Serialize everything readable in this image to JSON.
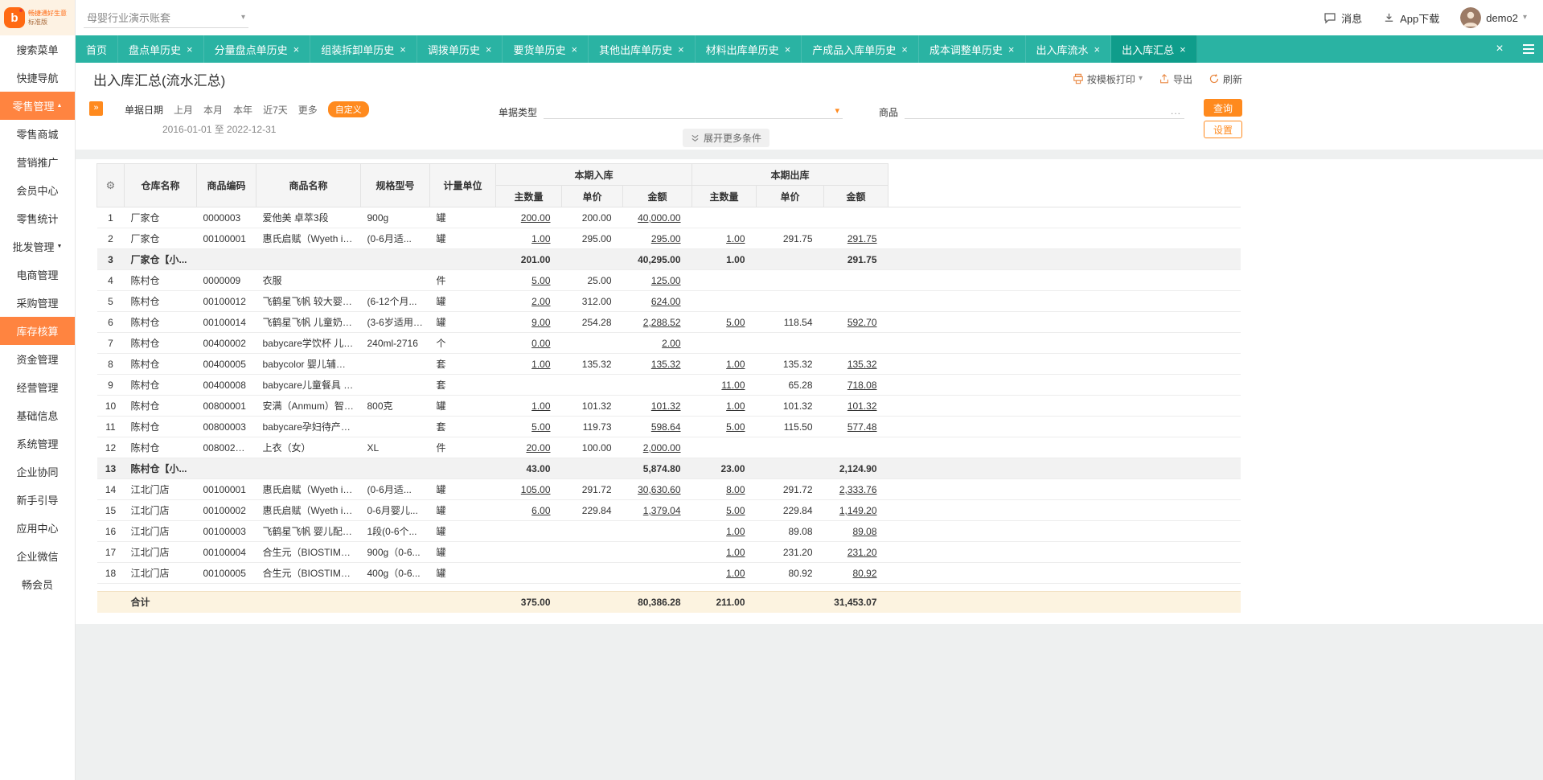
{
  "theme": {
    "teal": "#2ab3a3",
    "teal_dark": "#0f9d8b",
    "orange": "#ff8a1e",
    "orange_deep": "#ff8440",
    "cream": "#fcf3e0"
  },
  "icons": {
    "close": "×",
    "collapse": "»",
    "ellipsis": "...",
    "caret_down": "▾",
    "gear": "⚙",
    "menu_up": "▲",
    "menu_down": "▼"
  },
  "topbar": {
    "logo_title": "畅捷通好生意",
    "logo_sub": "标准版",
    "account": "母婴行业演示账套",
    "message": "消息",
    "app_download": "App下载",
    "user": "demo2"
  },
  "tabbar": {
    "tabs": [
      {
        "label": "首页",
        "closable": false,
        "active": false
      },
      {
        "label": "盘点单历史",
        "closable": true,
        "active": false
      },
      {
        "label": "分量盘点单历史",
        "closable": true,
        "active": false
      },
      {
        "label": "组装拆卸单历史",
        "closable": true,
        "active": false
      },
      {
        "label": "调拨单历史",
        "closable": true,
        "active": false
      },
      {
        "label": "要货单历史",
        "closable": true,
        "active": false
      },
      {
        "label": "其他出库单历史",
        "closable": true,
        "active": false
      },
      {
        "label": "材料出库单历史",
        "closable": true,
        "active": false
      },
      {
        "label": "产成品入库单历史",
        "closable": true,
        "active": false
      },
      {
        "label": "成本调整单历史",
        "closable": true,
        "active": false
      },
      {
        "label": "出入库流水",
        "closable": true,
        "active": false
      },
      {
        "label": "出入库汇总",
        "closable": true,
        "active": true
      }
    ]
  },
  "sidebar": {
    "items": [
      {
        "label": "搜索菜单"
      },
      {
        "label": "快捷导航"
      },
      {
        "label": "零售管理",
        "arrow": "up",
        "highlight": true
      },
      {
        "label": "零售商城"
      },
      {
        "label": "营销推广"
      },
      {
        "label": "会员中心"
      },
      {
        "label": "零售统计"
      },
      {
        "label": "批发管理",
        "arrow": "down"
      },
      {
        "label": "电商管理"
      },
      {
        "label": "采购管理"
      },
      {
        "label": "库存核算",
        "highlight": true
      },
      {
        "label": "资金管理"
      },
      {
        "label": "经营管理"
      },
      {
        "label": "基础信息"
      },
      {
        "label": "系统管理"
      },
      {
        "label": "企业协同"
      },
      {
        "label": "新手引导"
      },
      {
        "label": "应用中心"
      },
      {
        "label": "企业微信"
      },
      {
        "label": "畅会员"
      }
    ]
  },
  "page": {
    "title": "出入库汇总(流水汇总)",
    "print": "按模板打印",
    "export": "导出",
    "refresh": "刷新"
  },
  "filters": {
    "date_label": "单据日期",
    "quick_options": [
      "上月",
      "本月",
      "本年",
      "近7天",
      "更多"
    ],
    "custom": "自定义",
    "date_range": "2016-01-01 至 2022-12-31",
    "doc_type_label": "单据类型",
    "product_label": "商品",
    "query_button": "查询",
    "settings_button": "设置",
    "expand_more": "展开更多条件"
  },
  "table": {
    "headers": {
      "warehouse": "仓库名称",
      "code": "商品编码",
      "name": "商品名称",
      "spec": "规格型号",
      "unit": "计量单位",
      "inbound_group": "本期入库",
      "outbound_group": "本期出库",
      "qty": "主数量",
      "price": "单价",
      "amount": "金额"
    },
    "rows": [
      {
        "no": "1",
        "warehouse": "厂家仓",
        "code": "0000003",
        "name": "爱他美 卓萃3段",
        "spec": "900g",
        "unit": "罐",
        "in_qty": "200.00",
        "in_price": "200.00",
        "in_amt": "40,000.00",
        "out_qty": "",
        "out_price": "",
        "out_amt": "",
        "type": "normal"
      },
      {
        "no": "2",
        "warehouse": "厂家仓",
        "code": "00100001",
        "name": "惠氏启赋（Wyeth illu...",
        "spec": "(0-6月适...",
        "unit": "罐",
        "in_qty": "1.00",
        "in_price": "295.00",
        "in_amt": "295.00",
        "out_qty": "1.00",
        "out_price": "291.75",
        "out_amt": "291.75",
        "type": "normal"
      },
      {
        "no": "3",
        "warehouse": "厂家仓【小...",
        "code": "",
        "name": "",
        "spec": "",
        "unit": "",
        "in_qty": "201.00",
        "in_price": "",
        "in_amt": "40,295.00",
        "out_qty": "1.00",
        "out_price": "",
        "out_amt": "291.75",
        "type": "subtotal"
      },
      {
        "no": "4",
        "warehouse": "陈村仓",
        "code": "0000009",
        "name": "衣服",
        "spec": "",
        "unit": "件",
        "in_qty": "5.00",
        "in_price": "25.00",
        "in_amt": "125.00",
        "out_qty": "",
        "out_price": "",
        "out_amt": "",
        "type": "normal"
      },
      {
        "no": "5",
        "warehouse": "陈村仓",
        "code": "00100012",
        "name": "飞鹤星飞帆 较大婴儿配...",
        "spec": "(6-12个月...",
        "unit": "罐",
        "in_qty": "2.00",
        "in_price": "312.00",
        "in_amt": "624.00",
        "out_qty": "",
        "out_price": "",
        "out_amt": "",
        "type": "normal"
      },
      {
        "no": "6",
        "warehouse": "陈村仓",
        "code": "00100014",
        "name": "飞鹤星飞帆 儿童奶粉 4...",
        "spec": "(3-6岁适用)...",
        "unit": "罐",
        "in_qty": "9.00",
        "in_price": "254.28",
        "in_amt": "2,288.52",
        "out_qty": "5.00",
        "out_price": "118.54",
        "out_amt": "592.70",
        "type": "normal"
      },
      {
        "no": "7",
        "warehouse": "陈村仓",
        "code": "00400002",
        "name": "babycare学饮杯 儿童...",
        "spec": "240ml-2716",
        "unit": "个",
        "in_qty": "0.00",
        "in_price": "",
        "in_amt": "2.00",
        "out_qty": "",
        "out_price": "",
        "out_amt": "",
        "type": "normal"
      },
      {
        "no": "8",
        "warehouse": "陈村仓",
        "code": "00400005",
        "name": "babycolor 婴儿辅食机 ...",
        "spec": "",
        "unit": "套",
        "in_qty": "1.00",
        "in_price": "135.32",
        "in_amt": "135.32",
        "out_qty": "1.00",
        "out_price": "135.32",
        "out_amt": "135.32",
        "type": "normal"
      },
      {
        "no": "9",
        "warehouse": "陈村仓",
        "code": "00400008",
        "name": "babycare儿童餐具 婴...",
        "spec": "",
        "unit": "套",
        "in_qty": "",
        "in_price": "",
        "in_amt": "",
        "out_qty": "11.00",
        "out_price": "65.28",
        "out_amt": "718.08",
        "type": "normal"
      },
      {
        "no": "10",
        "warehouse": "陈村仓",
        "code": "00800001",
        "name": "安满（Anmum）智孕...",
        "spec": "800克",
        "unit": "罐",
        "in_qty": "1.00",
        "in_price": "101.32",
        "in_amt": "101.32",
        "out_qty": "1.00",
        "out_price": "101.32",
        "out_amt": "101.32",
        "type": "normal"
      },
      {
        "no": "11",
        "warehouse": "陈村仓",
        "code": "00800003",
        "name": "babycare孕妇待产包 ...",
        "spec": "",
        "unit": "套",
        "in_qty": "5.00",
        "in_price": "119.73",
        "in_amt": "598.64",
        "out_qty": "5.00",
        "out_price": "115.50",
        "out_amt": "577.48",
        "type": "normal"
      },
      {
        "no": "12",
        "warehouse": "陈村仓",
        "code": "008002000...",
        "name": "上衣（女）",
        "spec": "XL",
        "unit": "件",
        "in_qty": "20.00",
        "in_price": "100.00",
        "in_amt": "2,000.00",
        "out_qty": "",
        "out_price": "",
        "out_amt": "",
        "type": "normal"
      },
      {
        "no": "13",
        "warehouse": "陈村仓【小...",
        "code": "",
        "name": "",
        "spec": "",
        "unit": "",
        "in_qty": "43.00",
        "in_price": "",
        "in_amt": "5,874.80",
        "out_qty": "23.00",
        "out_price": "",
        "out_amt": "2,124.90",
        "type": "subtotal"
      },
      {
        "no": "14",
        "warehouse": "江北门店",
        "code": "00100001",
        "name": "惠氏启赋（Wyeth illu...",
        "spec": "(0-6月适...",
        "unit": "罐",
        "in_qty": "105.00",
        "in_price": "291.72",
        "in_amt": "30,630.60",
        "out_qty": "8.00",
        "out_price": "291.72",
        "out_amt": "2,333.76",
        "type": "normal"
      },
      {
        "no": "15",
        "warehouse": "江北门店",
        "code": "00100002",
        "name": "惠氏启赋（Wyeth illu...",
        "spec": "0-6月婴儿...",
        "unit": "罐",
        "in_qty": "6.00",
        "in_price": "229.84",
        "in_amt": "1,379.04",
        "out_qty": "5.00",
        "out_price": "229.84",
        "out_amt": "1,149.20",
        "type": "normal"
      },
      {
        "no": "16",
        "warehouse": "江北门店",
        "code": "00100003",
        "name": "飞鹤星飞帆 婴儿配方奶...",
        "spec": "1段(0-6个...",
        "unit": "罐",
        "in_qty": "",
        "in_price": "",
        "in_amt": "",
        "out_qty": "1.00",
        "out_price": "89.08",
        "out_amt": "89.08",
        "type": "normal"
      },
      {
        "no": "17",
        "warehouse": "江北门店",
        "code": "00100004",
        "name": "合生元（BIOSTIME）...",
        "spec": "900g（0-6...",
        "unit": "罐",
        "in_qty": "",
        "in_price": "",
        "in_amt": "",
        "out_qty": "1.00",
        "out_price": "231.20",
        "out_amt": "231.20",
        "type": "normal"
      },
      {
        "no": "18",
        "warehouse": "江北门店",
        "code": "00100005",
        "name": "合生元（BIOSTIME）...",
        "spec": "400g（0-6...",
        "unit": "罐",
        "in_qty": "",
        "in_price": "",
        "in_amt": "",
        "out_qty": "1.00",
        "out_price": "80.92",
        "out_amt": "80.92",
        "type": "normal"
      }
    ],
    "footer": {
      "label": "合计",
      "in_qty": "375.00",
      "in_amt": "80,386.28",
      "out_qty": "211.00",
      "out_amt": "31,453.07"
    }
  }
}
